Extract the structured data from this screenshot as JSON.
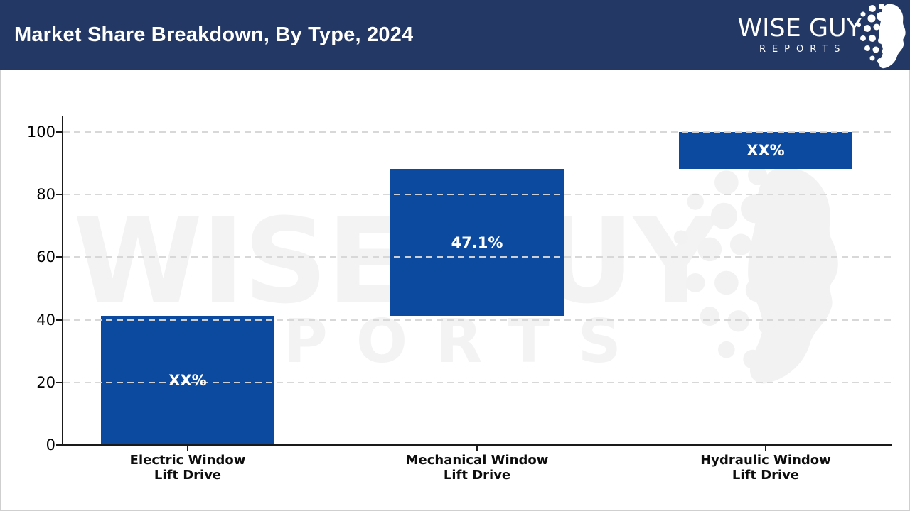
{
  "header": {
    "title": "Market Share Breakdown, By Type, 2024",
    "logo": {
      "name_top": "WISE GUY",
      "name_bottom": "REPORTS"
    }
  },
  "watermark": {
    "text_top": "WISE GUY",
    "text_bottom": "REPORTS"
  },
  "colors": {
    "header_navy": "#233864",
    "bar_blue": "#0c4aa0",
    "watermark_gray": "#f3f3f3",
    "gridline_gray": "#d6d6d6",
    "axis_black": "#1a1a1a",
    "value_label_white": "#ffffff"
  },
  "chart_data": {
    "type": "bar",
    "subtype": "floating-segment-breakdown",
    "title": "Market Share Breakdown, By Type, 2024",
    "xlabel": "",
    "ylabel": "",
    "ylim": [
      0,
      100
    ],
    "yticks": [
      0,
      20,
      40,
      60,
      80,
      100
    ],
    "grid": "horizontal-dashed-over-bars",
    "legend": "none",
    "categories": [
      "Electric Window Lift Drive",
      "Mechanical Window Lift Drive",
      "Hydraulic Window Lift Drive"
    ],
    "bars": [
      {
        "label_lines": [
          "Electric Window",
          "Lift Drive"
        ],
        "start": 0,
        "end": 41.2,
        "value_label": "XX%"
      },
      {
        "label_lines": [
          "Mechanical Window",
          "Lift Drive"
        ],
        "start": 41.2,
        "end": 88.3,
        "value_label": "47.1%"
      },
      {
        "label_lines": [
          "Hydraulic Window",
          "Lift Drive"
        ],
        "start": 88.3,
        "end": 100,
        "value_label": "XX%"
      }
    ]
  }
}
